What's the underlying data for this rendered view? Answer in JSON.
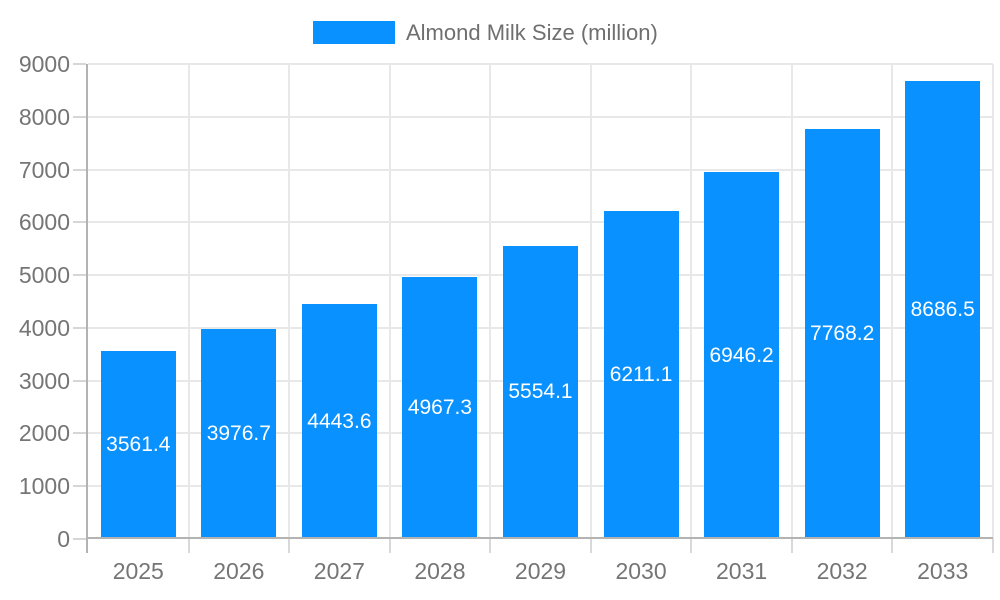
{
  "chart_data": {
    "type": "bar",
    "title": "Almond Milk Size (million)",
    "series_name": "Almond Milk Size (million)",
    "categories": [
      "2025",
      "2026",
      "2027",
      "2028",
      "2029",
      "2030",
      "2031",
      "2032",
      "2033"
    ],
    "values": [
      3561.4,
      3976.7,
      4443.6,
      4967.3,
      5554.1,
      6211.1,
      6946.2,
      7768.2,
      8686.5
    ],
    "value_labels": [
      "3561.4",
      "3976.7",
      "4443.6",
      "4967.3",
      "5554.1",
      "6211.1",
      "6946.2",
      "7768.2",
      "8686.5"
    ],
    "xlabel": "",
    "ylabel": "",
    "ylim": [
      0,
      9000
    ],
    "ytick_step": 1000,
    "y_tick_labels": [
      "0",
      "1000",
      "2000",
      "3000",
      "4000",
      "5000",
      "6000",
      "7000",
      "8000",
      "9000"
    ],
    "legend": {
      "label": "Almond Milk Size (million)",
      "position": "top-center"
    },
    "grid": true,
    "colors": {
      "bar": "#0991FF",
      "value_label": "#FFFFFF",
      "axis_text": "#757575",
      "gridline": "#E8E8E8",
      "axis_line": "#B3B3B3",
      "tick": "#D6D6D6",
      "background": "#FFFFFF"
    }
  }
}
